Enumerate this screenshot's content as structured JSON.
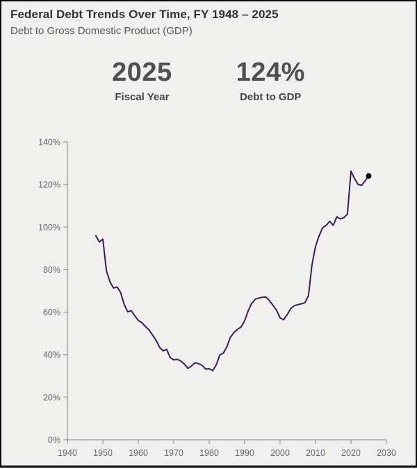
{
  "page": {
    "title": "Federal Debt Trends Over Time, FY 1948 – 2025",
    "subtitle": "Debt to Gross Domestic Product (GDP)"
  },
  "stats": [
    {
      "value": "2025",
      "label": "Fiscal Year"
    },
    {
      "value": "124%",
      "label": "Debt to GDP"
    }
  ],
  "colors": {
    "background": "#f0f0ee",
    "line": "#3b1e57",
    "end_dot": "#0d0d0d",
    "axis": "#949494",
    "tick_label": "#666666"
  },
  "chart_data": {
    "type": "line",
    "title": "Federal Debt Trends Over Time, FY 1948 – 2025",
    "subtitle": "Debt to Gross Domestic Product (GDP)",
    "xlabel": "",
    "ylabel": "",
    "xlim": [
      1940,
      2030
    ],
    "ylim": [
      0,
      140
    ],
    "grid": false,
    "legend": "none",
    "x_ticks": [
      {
        "value": 1940,
        "label": "1940"
      },
      {
        "value": 1950,
        "label": "1950"
      },
      {
        "value": 1960,
        "label": "1960"
      },
      {
        "value": 1970,
        "label": "1970"
      },
      {
        "value": 1980,
        "label": "1980"
      },
      {
        "value": 1990,
        "label": "1990"
      },
      {
        "value": 2000,
        "label": "2000"
      },
      {
        "value": 2010,
        "label": "2010"
      },
      {
        "value": 2020,
        "label": "2020"
      },
      {
        "value": 2030,
        "label": "2030"
      }
    ],
    "y_ticks": [
      {
        "value": 0,
        "label": "0%"
      },
      {
        "value": 20,
        "label": "20%"
      },
      {
        "value": 40,
        "label": "40%"
      },
      {
        "value": 60,
        "label": "60%"
      },
      {
        "value": 80,
        "label": "80%"
      },
      {
        "value": 100,
        "label": "100%"
      },
      {
        "value": 120,
        "label": "120%"
      },
      {
        "value": 140,
        "label": "140%"
      }
    ],
    "series": [
      {
        "name": "Debt to GDP (%)",
        "years": [
          1948,
          1949,
          1950,
          1951,
          1952,
          1953,
          1954,
          1955,
          1956,
          1957,
          1958,
          1959,
          1960,
          1961,
          1962,
          1963,
          1964,
          1965,
          1966,
          1967,
          1968,
          1969,
          1970,
          1971,
          1972,
          1973,
          1974,
          1975,
          1976,
          1977,
          1978,
          1979,
          1980,
          1981,
          1982,
          1983,
          1984,
          1985,
          1986,
          1987,
          1988,
          1989,
          1990,
          1991,
          1992,
          1993,
          1994,
          1995,
          1996,
          1997,
          1998,
          1999,
          2000,
          2001,
          2002,
          2003,
          2004,
          2005,
          2006,
          2007,
          2008,
          2009,
          2010,
          2011,
          2012,
          2013,
          2014,
          2015,
          2016,
          2017,
          2018,
          2019,
          2020,
          2021,
          2022,
          2023,
          2024,
          2025
        ],
        "values": [
          96.0,
          93.0,
          94.3,
          79.5,
          74.3,
          71.3,
          71.8,
          69.3,
          63.7,
          60.2,
          60.7,
          58.3,
          56.1,
          55.1,
          53.3,
          51.7,
          49.3,
          46.8,
          43.5,
          41.8,
          42.5,
          38.6,
          37.6,
          37.8,
          37.0,
          35.6,
          33.6,
          34.7,
          36.2,
          35.8,
          35.0,
          33.2,
          33.4,
          32.5,
          35.3,
          39.9,
          40.7,
          43.8,
          48.2,
          50.4,
          51.9,
          53.1,
          55.9,
          60.7,
          64.1,
          66.1,
          66.6,
          67.0,
          67.1,
          65.4,
          63.2,
          60.9,
          57.3,
          56.4,
          58.8,
          61.7,
          63.0,
          63.5,
          63.9,
          64.4,
          67.7,
          82.3,
          90.9,
          95.8,
          99.7,
          100.8,
          102.7,
          100.8,
          104.8,
          103.8,
          104.4,
          106.1,
          126.3,
          122.8,
          120.0,
          119.6,
          121.7,
          124.0
        ]
      }
    ],
    "end_marker": {
      "year": 2025,
      "value": 124
    }
  }
}
